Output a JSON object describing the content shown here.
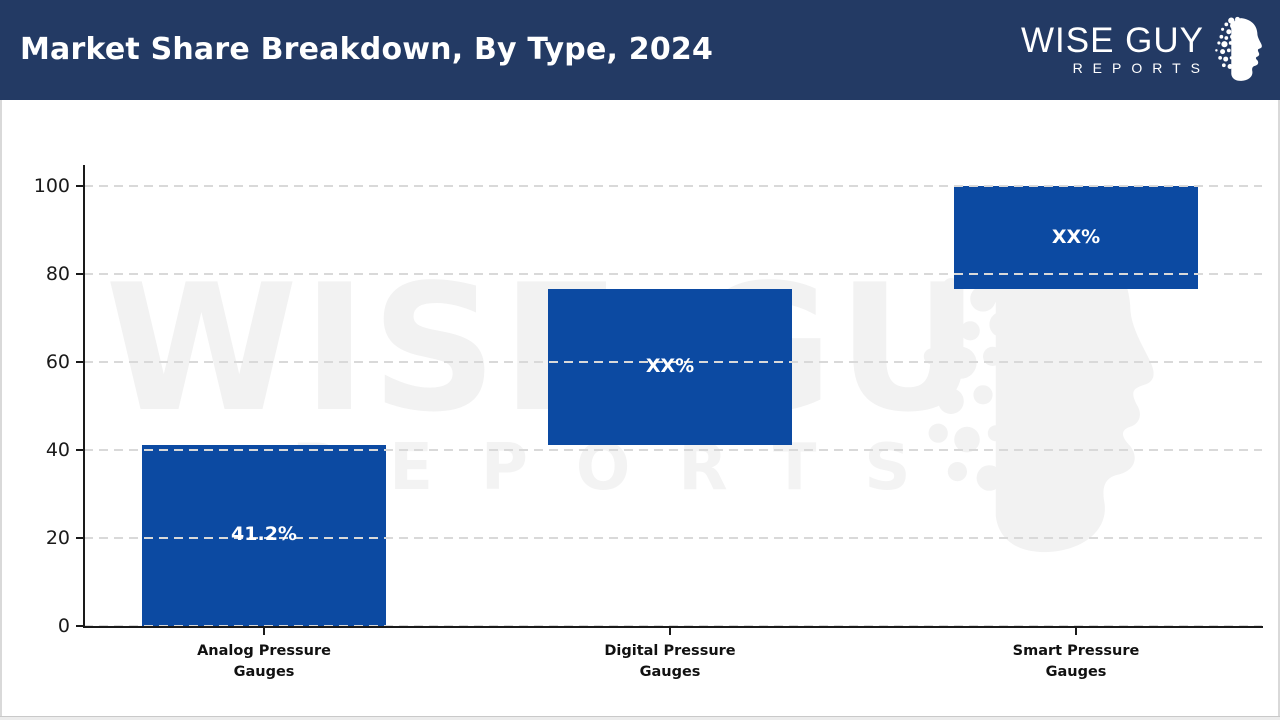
{
  "header": {
    "title": "Market Share Breakdown, By Type, 2024",
    "background_color": "#233A64",
    "logo": {
      "line1": "WISE GUY",
      "line2": "REPORTS",
      "face_icon": "dotted-face-profile"
    }
  },
  "watermark": {
    "line1": "WISE GUY",
    "line2": "REPORTS",
    "color": "#F2F2F2"
  },
  "chart_data": {
    "type": "bar",
    "variant": "waterfall",
    "title": "Market Share Breakdown, By Type, 2024",
    "categories": [
      "Analog Pressure Gauges",
      "Digital Pressure Gauges",
      "Smart Pressure Gauges"
    ],
    "segments": [
      {
        "category": "Analog Pressure Gauges",
        "start": 0,
        "end": 41.2,
        "label": "41.2%"
      },
      {
        "category": "Digital Pressure Gauges",
        "start": 41.2,
        "end": 76.5,
        "label": "XX%"
      },
      {
        "category": "Smart Pressure Gauges",
        "start": 76.5,
        "end": 100,
        "label": "XX%"
      }
    ],
    "y_ticks": [
      0,
      20,
      40,
      60,
      80,
      100
    ],
    "ylim": [
      0,
      105
    ],
    "xlabel": "",
    "ylabel": "",
    "grid": "horizontal-dashed",
    "legend": "none",
    "bar_color": "#0C4AA2",
    "bar_label_color": "#FFFFFF",
    "axis_color": "#1A1A1A",
    "gridline_color": "#D9D9D9"
  }
}
